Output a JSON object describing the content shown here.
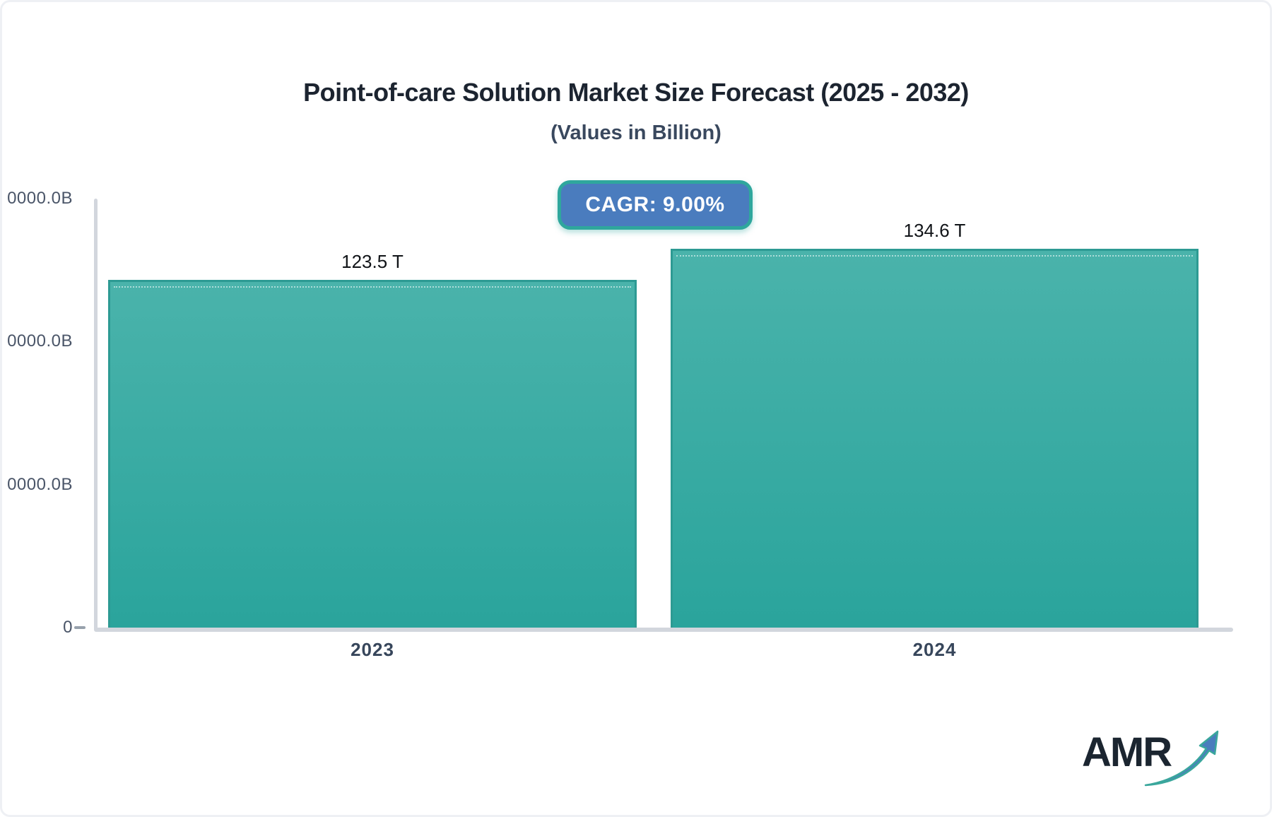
{
  "header": {
    "title": "Point-of-care Solution Market Size Forecast (2025 - 2032)",
    "subtitle": "(Values in Billion)"
  },
  "cagr_badge": {
    "label": "CAGR: 9.00%",
    "bg_color": "#4a7cbe",
    "border_color": "#2fa79d",
    "text_color": "#ffffff"
  },
  "chart_data": {
    "type": "bar",
    "categories": [
      "2023",
      "2024"
    ],
    "values": [
      123.5,
      134.6
    ],
    "value_unit": "T",
    "value_labels": [
      "123.5 T",
      "134.6 T"
    ],
    "title": "Point-of-care Solution Market Size Forecast (2025 - 2032)",
    "subtitle": "(Values in Billion)",
    "xlabel": "",
    "ylabel": "",
    "y_ticks": [
      "0000.0B",
      "0000.0B",
      "0000.0B",
      "0"
    ],
    "axis_max": 152.4,
    "ylim": [
      0,
      152.4
    ],
    "grid": false,
    "legend": "none",
    "bar_color_top": "#4ab3ab",
    "bar_color_bottom": "#2aa49c",
    "bar_border_color": "#2d9a93",
    "axis_color": "#d2d6dd",
    "tick_label_color": "#4a5568"
  },
  "logo": {
    "text": "AMR"
  }
}
